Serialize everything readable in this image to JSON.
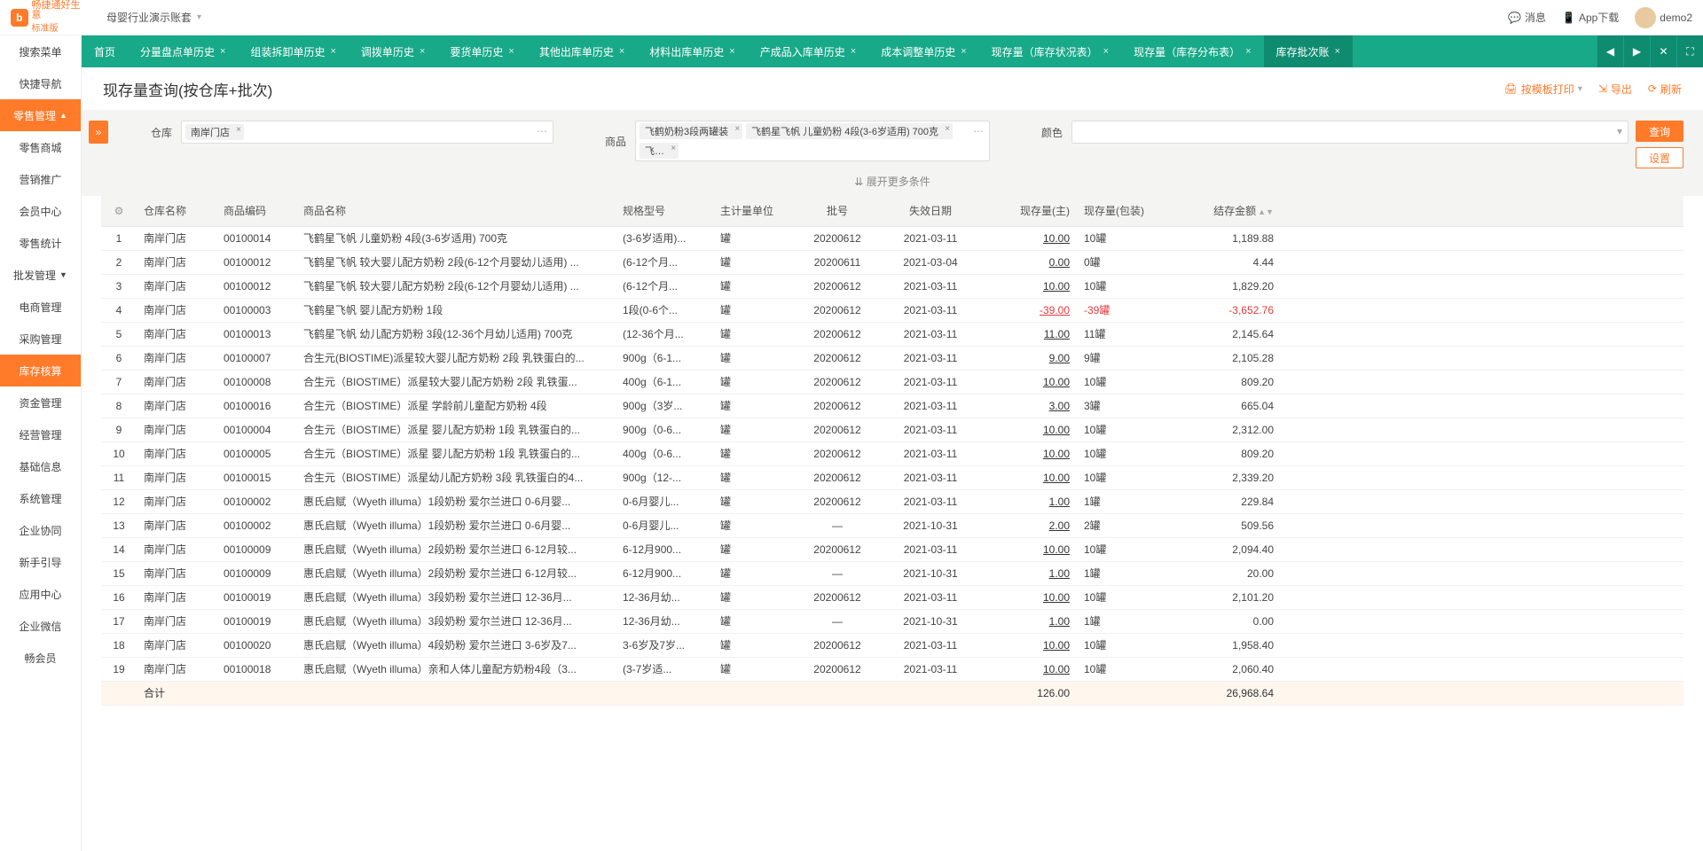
{
  "brand": {
    "name": "畅捷通好生意",
    "sub": "标准版",
    "initial": "b"
  },
  "account_selector": "母婴行业演示账套",
  "topbar": {
    "msg": "消息",
    "app": "App下载",
    "user": "demo2"
  },
  "sidebar": [
    {
      "label": "搜索菜单",
      "name": "search-menu"
    },
    {
      "label": "快捷导航",
      "name": "quick-nav"
    },
    {
      "label": "零售管理",
      "name": "retail-mgmt",
      "orange": true,
      "arrow": "▲"
    },
    {
      "label": "零售商城",
      "name": "retail-mall"
    },
    {
      "label": "营销推广",
      "name": "marketing"
    },
    {
      "label": "会员中心",
      "name": "member"
    },
    {
      "label": "零售统计",
      "name": "retail-stats"
    },
    {
      "label": "批发管理",
      "name": "wholesale",
      "arrow": "▼"
    },
    {
      "label": "电商管理",
      "name": "ecom"
    },
    {
      "label": "采购管理",
      "name": "purchase"
    },
    {
      "label": "库存核算",
      "name": "inventory",
      "orange": true
    },
    {
      "label": "资金管理",
      "name": "funds"
    },
    {
      "label": "经营管理",
      "name": "biz"
    },
    {
      "label": "基础信息",
      "name": "basics"
    },
    {
      "label": "系统管理",
      "name": "system"
    },
    {
      "label": "企业协同",
      "name": "collab"
    },
    {
      "label": "新手引导",
      "name": "guide"
    },
    {
      "label": "应用中心",
      "name": "apps"
    },
    {
      "label": "企业微信",
      "name": "wecom"
    },
    {
      "label": "畅会员",
      "name": "vip"
    }
  ],
  "tabs": [
    {
      "label": "首页",
      "closable": false
    },
    {
      "label": "分量盘点单历史",
      "closable": true
    },
    {
      "label": "组装拆卸单历史",
      "closable": true
    },
    {
      "label": "调拨单历史",
      "closable": true
    },
    {
      "label": "要货单历史",
      "closable": true
    },
    {
      "label": "其他出库单历史",
      "closable": true
    },
    {
      "label": "材料出库单历史",
      "closable": true
    },
    {
      "label": "产成品入库单历史",
      "closable": true
    },
    {
      "label": "成本调整单历史",
      "closable": true
    },
    {
      "label": "现存量（库存状况表）",
      "closable": true
    },
    {
      "label": "现存量（库存分布表）",
      "closable": true
    },
    {
      "label": "库存批次账",
      "closable": true,
      "active": true
    }
  ],
  "page_title": "现存量查询(按仓库+批次)",
  "header_actions": {
    "print": "按模板打印",
    "export": "导出",
    "refresh": "刷新"
  },
  "filters": {
    "warehouse_label": "仓库",
    "warehouse_chips": [
      "南岸门店"
    ],
    "product_label": "商品",
    "product_chips": [
      "飞鹤奶粉3段两罐装",
      "飞鹤星飞帆 儿童奶粉 4段(3-6岁适用) 700克",
      "飞…"
    ],
    "color_label": "颜色",
    "more": "展开更多条件",
    "btn_query": "查询",
    "btn_setting": "设置"
  },
  "columns": [
    "",
    "仓库名称",
    "商品编码",
    "商品名称",
    "规格型号",
    "主计量单位",
    "批号",
    "失效日期",
    "现存量(主)",
    "现存量(包装)",
    "结存金额"
  ],
  "rows": [
    {
      "n": 1,
      "wh": "南岸门店",
      "code": "00100014",
      "name": "飞鹤星飞帆 儿童奶粉 4段(3-6岁适用) 700克",
      "spec": "(3-6岁适用)...",
      "unit": "罐",
      "batch": "20200612",
      "exp": "2021-03-11",
      "qty": "10.00",
      "pack": "10罐",
      "amt": "1,189.88"
    },
    {
      "n": 2,
      "wh": "南岸门店",
      "code": "00100012",
      "name": "飞鹤星飞帆 较大婴儿配方奶粉 2段(6-12个月婴幼儿适用) ...",
      "spec": "(6-12个月...",
      "unit": "罐",
      "batch": "20200611",
      "exp": "2021-03-04",
      "qty": "0.00",
      "pack": "0罐",
      "amt": "4.44"
    },
    {
      "n": 3,
      "wh": "南岸门店",
      "code": "00100012",
      "name": "飞鹤星飞帆 较大婴儿配方奶粉 2段(6-12个月婴幼儿适用) ...",
      "spec": "(6-12个月...",
      "unit": "罐",
      "batch": "20200612",
      "exp": "2021-03-11",
      "qty": "10.00",
      "pack": "10罐",
      "amt": "1,829.20"
    },
    {
      "n": 4,
      "wh": "南岸门店",
      "code": "00100003",
      "name": "飞鹤星飞帆 婴儿配方奶粉 1段",
      "spec": "1段(0-6个...",
      "unit": "罐",
      "batch": "20200612",
      "exp": "2021-03-11",
      "qty": "-39.00",
      "pack": "-39罐",
      "amt": "-3,652.76",
      "neg": true
    },
    {
      "n": 5,
      "wh": "南岸门店",
      "code": "00100013",
      "name": "飞鹤星飞帆 幼儿配方奶粉 3段(12-36个月幼儿适用) 700克",
      "spec": "(12-36个月...",
      "unit": "罐",
      "batch": "20200612",
      "exp": "2021-03-11",
      "qty": "11.00",
      "pack": "11罐",
      "amt": "2,145.64"
    },
    {
      "n": 6,
      "wh": "南岸门店",
      "code": "00100007",
      "name": "合生元(BIOSTIME)派星较大婴儿配方奶粉 2段 乳铁蛋白的...",
      "spec": "900g（6-1...",
      "unit": "罐",
      "batch": "20200612",
      "exp": "2021-03-11",
      "qty": "9.00",
      "pack": "9罐",
      "amt": "2,105.28"
    },
    {
      "n": 7,
      "wh": "南岸门店",
      "code": "00100008",
      "name": "合生元（BIOSTIME）派星较大婴儿配方奶粉 2段 乳铁蛋...",
      "spec": "400g（6-1...",
      "unit": "罐",
      "batch": "20200612",
      "exp": "2021-03-11",
      "qty": "10.00",
      "pack": "10罐",
      "amt": "809.20"
    },
    {
      "n": 8,
      "wh": "南岸门店",
      "code": "00100016",
      "name": "合生元（BIOSTIME）派星 学龄前儿童配方奶粉 4段",
      "spec": "900g（3岁...",
      "unit": "罐",
      "batch": "20200612",
      "exp": "2021-03-11",
      "qty": "3.00",
      "pack": "3罐",
      "amt": "665.04"
    },
    {
      "n": 9,
      "wh": "南岸门店",
      "code": "00100004",
      "name": "合生元（BIOSTIME）派星 婴儿配方奶粉 1段 乳铁蛋白的...",
      "spec": "900g（0-6...",
      "unit": "罐",
      "batch": "20200612",
      "exp": "2021-03-11",
      "qty": "10.00",
      "pack": "10罐",
      "amt": "2,312.00"
    },
    {
      "n": 10,
      "wh": "南岸门店",
      "code": "00100005",
      "name": "合生元（BIOSTIME）派星 婴儿配方奶粉 1段 乳铁蛋白的...",
      "spec": "400g（0-6...",
      "unit": "罐",
      "batch": "20200612",
      "exp": "2021-03-11",
      "qty": "10.00",
      "pack": "10罐",
      "amt": "809.20"
    },
    {
      "n": 11,
      "wh": "南岸门店",
      "code": "00100015",
      "name": "合生元（BIOSTIME）派星幼儿配方奶粉 3段 乳铁蛋白的4...",
      "spec": "900g（12-...",
      "unit": "罐",
      "batch": "20200612",
      "exp": "2021-03-11",
      "qty": "10.00",
      "pack": "10罐",
      "amt": "2,339.20"
    },
    {
      "n": 12,
      "wh": "南岸门店",
      "code": "00100002",
      "name": "惠氏启赋（Wyeth illuma）1段奶粉 爱尔兰进口 0-6月婴...",
      "spec": "0-6月婴儿...",
      "unit": "罐",
      "batch": "20200612",
      "exp": "2021-03-11",
      "qty": "1.00",
      "pack": "1罐",
      "amt": "229.84"
    },
    {
      "n": 13,
      "wh": "南岸门店",
      "code": "00100002",
      "name": "惠氏启赋（Wyeth illuma）1段奶粉 爱尔兰进口 0-6月婴...",
      "spec": "0-6月婴儿...",
      "unit": "罐",
      "batch": "",
      "exp": "2021-10-31",
      "qty": "2.00",
      "pack": "2罐",
      "amt": "509.56"
    },
    {
      "n": 14,
      "wh": "南岸门店",
      "code": "00100009",
      "name": "惠氏启赋（Wyeth illuma）2段奶粉 爱尔兰进口 6-12月较...",
      "spec": "6-12月900...",
      "unit": "罐",
      "batch": "20200612",
      "exp": "2021-03-11",
      "qty": "10.00",
      "pack": "10罐",
      "amt": "2,094.40"
    },
    {
      "n": 15,
      "wh": "南岸门店",
      "code": "00100009",
      "name": "惠氏启赋（Wyeth illuma）2段奶粉 爱尔兰进口 6-12月较...",
      "spec": "6-12月900...",
      "unit": "罐",
      "batch": "",
      "exp": "2021-10-31",
      "qty": "1.00",
      "pack": "1罐",
      "amt": "20.00"
    },
    {
      "n": 16,
      "wh": "南岸门店",
      "code": "00100019",
      "name": "惠氏启赋（Wyeth illuma）3段奶粉 爱尔兰进口 12-36月...",
      "spec": "12-36月幼...",
      "unit": "罐",
      "batch": "20200612",
      "exp": "2021-03-11",
      "qty": "10.00",
      "pack": "10罐",
      "amt": "2,101.20"
    },
    {
      "n": 17,
      "wh": "南岸门店",
      "code": "00100019",
      "name": "惠氏启赋（Wyeth illuma）3段奶粉 爱尔兰进口 12-36月...",
      "spec": "12-36月幼...",
      "unit": "罐",
      "batch": "",
      "exp": "2021-10-31",
      "qty": "1.00",
      "pack": "1罐",
      "amt": "0.00"
    },
    {
      "n": 18,
      "wh": "南岸门店",
      "code": "00100020",
      "name": "惠氏启赋（Wyeth illuma）4段奶粉 爱尔兰进口 3-6岁及7...",
      "spec": "3-6岁及7岁...",
      "unit": "罐",
      "batch": "20200612",
      "exp": "2021-03-11",
      "qty": "10.00",
      "pack": "10罐",
      "amt": "1,958.40"
    },
    {
      "n": 19,
      "wh": "南岸门店",
      "code": "00100018",
      "name": "惠氏启赋（Wyeth illuma）亲和人体儿童配方奶粉4段（3...",
      "spec": "(3-7岁适...",
      "unit": "罐",
      "batch": "20200612",
      "exp": "2021-03-11",
      "qty": "10.00",
      "pack": "10罐",
      "amt": "2,060.40"
    }
  ],
  "total": {
    "label": "合计",
    "qty": "126.00",
    "amt": "26,968.64"
  },
  "empty_batch": "—"
}
